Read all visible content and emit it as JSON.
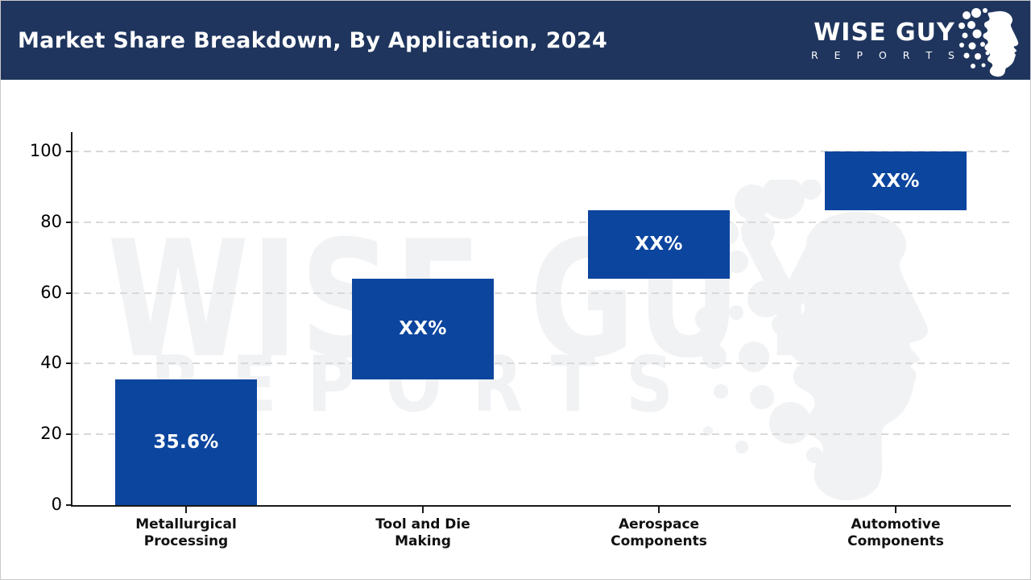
{
  "header": {
    "title": "Market Share Breakdown, By Application, 2024",
    "logo_line1": "WISE GUY",
    "logo_line2": "R E P O R T S"
  },
  "watermark": {
    "line1": "WISE GUY",
    "line2": "REPORTS"
  },
  "chart_data": {
    "type": "bar",
    "subtype": "waterfall",
    "title": "Market Share Breakdown, By Application, 2024",
    "categories": [
      [
        "Metallurgical",
        "Processing"
      ],
      [
        "Tool and Die",
        "Making"
      ],
      [
        "Aerospace",
        "Components"
      ],
      [
        "Automotive",
        "Components"
      ]
    ],
    "segments": [
      {
        "start": 0,
        "end": 35.6,
        "label": "35.6%"
      },
      {
        "start": 35.6,
        "end": 64.1,
        "label": "XX%"
      },
      {
        "start": 64.1,
        "end": 83.3,
        "label": "XX%"
      },
      {
        "start": 83.3,
        "end": 100,
        "label": "XX%"
      }
    ],
    "yticks": [
      0,
      20,
      40,
      60,
      80,
      100
    ],
    "ylim": [
      0,
      100
    ],
    "grid": "dashed-horizontal",
    "legend_position": "none",
    "bar_color": "#0c459e"
  },
  "colors": {
    "header_bg": "#1f355e",
    "bar": "#0c459e",
    "grid": "#d9d9d9",
    "axis": "#1a1a1a",
    "watermark": "#f1f2f4"
  }
}
